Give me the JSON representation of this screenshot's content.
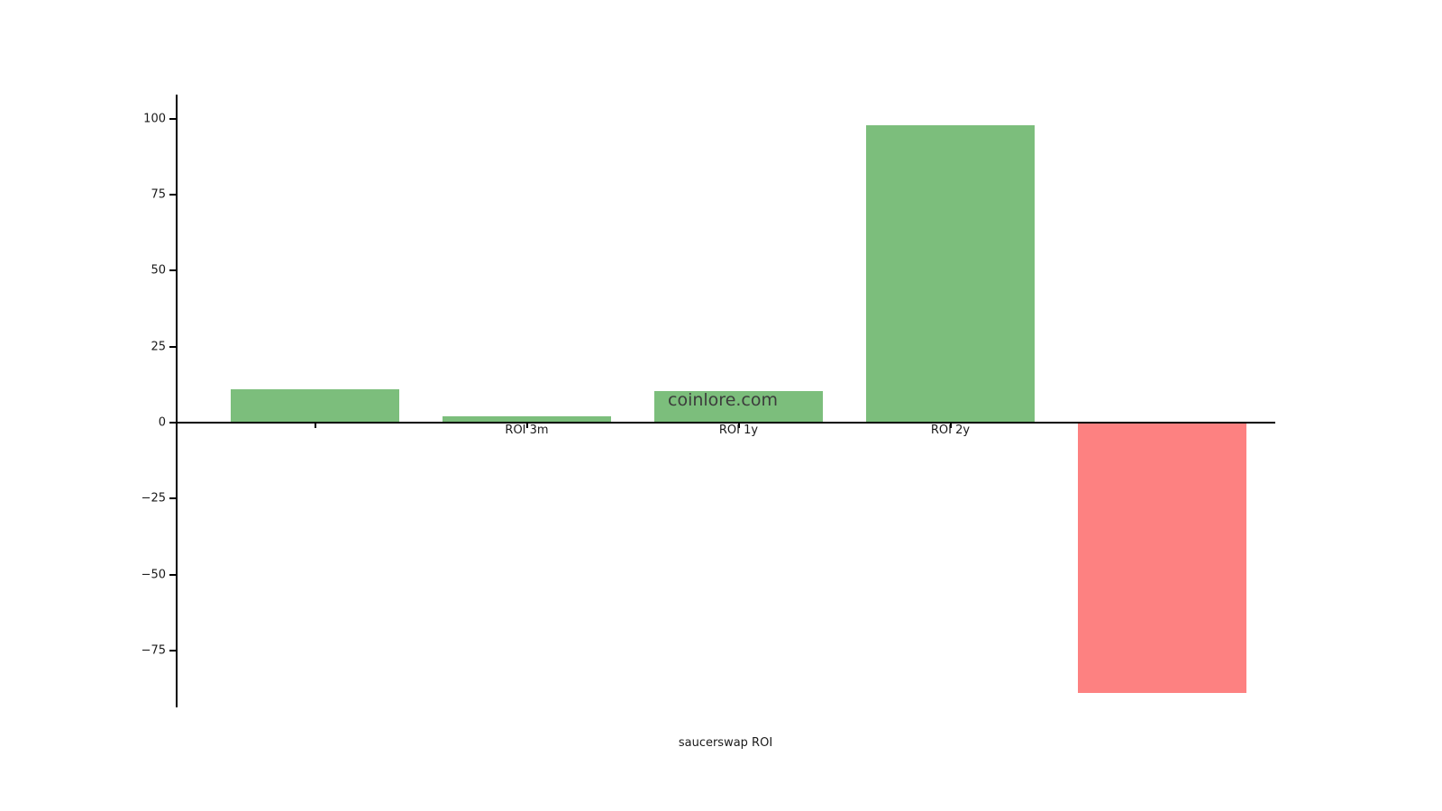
{
  "page": {
    "background": "#ffffff"
  },
  "chart_data": {
    "type": "bar",
    "title": "",
    "xlabel": "saucerswap ROI",
    "ylabel": "",
    "watermark": "coinlore.com",
    "categories": [
      "",
      "ROI 3m",
      "ROI 1y",
      "ROI 2y",
      ""
    ],
    "values": [
      11,
      2,
      10.5,
      98,
      -89
    ],
    "yticks": [
      100,
      75,
      50,
      25,
      0,
      -25,
      -50,
      -75
    ],
    "ytick_labels": [
      "100",
      "75",
      "50",
      "25",
      "0",
      "−25",
      "−50",
      "−75"
    ],
    "ylim": [
      -94,
      108
    ],
    "grid": false,
    "legend": "none",
    "positive_color": "#7cbe7c",
    "negative_color": "#fd8181",
    "axis_color": "#000000",
    "text_color": "#1a1a1a",
    "watermark_color": "#3c3c3c"
  }
}
